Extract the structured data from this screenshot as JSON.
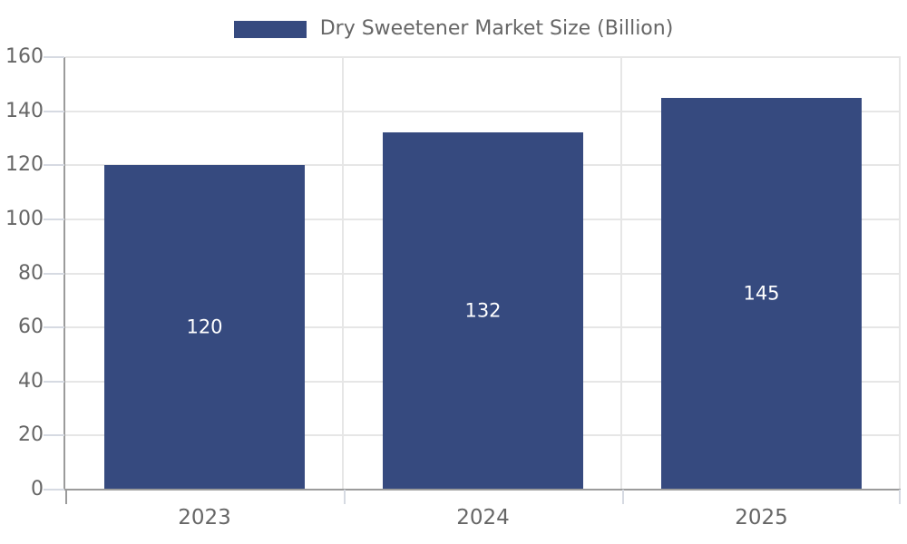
{
  "legend": {
    "label": "Dry Sweetener Market Size (Billion)",
    "swatch_color": "#364a7f"
  },
  "chart_data": {
    "type": "bar",
    "title": "",
    "xlabel": "",
    "ylabel": "",
    "categories": [
      "2023",
      "2024",
      "2025"
    ],
    "values": [
      120,
      132,
      145
    ],
    "series": [
      {
        "name": "Dry Sweetener Market Size (Billion)",
        "values": [
          120,
          132,
          145
        ]
      }
    ],
    "data_labels": [
      "120",
      "132",
      "145"
    ],
    "ylim": [
      0,
      160
    ],
    "yticks": [
      0,
      20,
      40,
      60,
      80,
      100,
      120,
      140,
      160
    ],
    "grid": true,
    "legend_position": "top-center",
    "colors": {
      "bar": "#364a7f",
      "bar_label": "#ffffff",
      "grid": "#e6e6e6",
      "axis": "#9b9b9b",
      "tick": "#d6dae2",
      "tick_label": "#666666",
      "legend_text": "#666666"
    }
  }
}
